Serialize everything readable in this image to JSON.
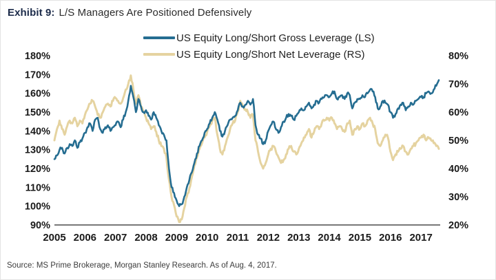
{
  "title": {
    "prefix": "Exhibit 9:",
    "text": "L/S Managers Are Positioned Defensively"
  },
  "source": "Source: MS Prime Brokerage, Morgan Stanley Research. As of Aug. 4, 2017.",
  "colors": {
    "gross_line": "#256d91",
    "net_line": "#e5d3a0",
    "axis_line": "#4a4a4a",
    "tick_text": "#1a1a1a",
    "title_prefix": "#1c2b4a"
  },
  "chart_data": {
    "type": "line",
    "title": "L/S Managers Are Positioned Defensively",
    "x_unit": "monthly from Jan 2005 to Aug 2017",
    "categories_x": [
      "2005",
      "2006",
      "2007",
      "2008",
      "2009",
      "2010",
      "2011",
      "2012",
      "2013",
      "2014",
      "2015",
      "2016",
      "2017"
    ],
    "left_axis": {
      "label": "Gross Leverage",
      "min": 90,
      "max": 180,
      "step": 10,
      "tick_labels": [
        "180%",
        "170%",
        "160%",
        "150%",
        "140%",
        "130%",
        "120%",
        "110%",
        "100%",
        "90%"
      ]
    },
    "right_axis": {
      "label": "Net Leverage",
      "min": 20,
      "max": 80,
      "step": 10,
      "tick_labels": [
        "80%",
        "70%",
        "60%",
        "50%",
        "40%",
        "30%",
        "20%"
      ]
    },
    "grid": false,
    "legend_position": "top-center",
    "series": [
      {
        "name": "US Equity Long/Short Gross Leverage (LS)",
        "axis": "left",
        "color": "#256d91",
        "values": [
          125,
          127,
          130,
          131,
          128,
          131,
          133,
          132,
          135,
          131,
          134,
          136,
          139,
          142,
          144,
          140,
          146,
          147,
          141,
          139,
          142,
          143,
          140,
          142,
          143,
          145,
          142,
          146,
          150,
          156,
          164,
          158,
          150,
          157,
          153,
          150,
          151,
          148,
          146,
          150,
          147,
          143,
          140,
          138,
          135,
          120,
          110,
          107,
          103,
          100,
          101,
          105,
          110,
          114,
          118,
          123,
          128,
          132,
          135,
          139,
          141,
          144,
          147,
          150,
          146,
          140,
          137,
          140,
          143,
          146,
          147,
          148,
          151,
          155,
          153,
          154,
          156,
          154,
          157,
          143,
          138,
          136,
          133,
          135,
          140,
          143,
          145,
          141,
          139,
          142,
          145,
          147,
          149,
          148,
          146,
          148,
          150,
          152,
          151,
          153,
          155,
          152,
          154,
          156,
          155,
          157,
          158,
          159,
          158,
          160,
          161,
          157,
          158,
          159,
          157,
          160,
          159,
          152,
          155,
          157,
          157,
          159,
          158,
          160,
          162,
          161,
          158,
          152,
          153,
          156,
          155,
          154,
          150,
          147,
          149,
          152,
          154,
          155,
          151,
          153,
          155,
          154,
          156,
          157,
          158,
          158,
          160,
          161,
          160,
          162,
          164,
          167
        ]
      },
      {
        "name": "US Equity Long/Short Net Leverage (RS)",
        "axis": "right",
        "color": "#e5d3a0",
        "values": [
          50,
          54,
          57,
          54,
          52,
          55,
          57,
          56,
          58,
          55,
          57,
          56,
          59,
          61,
          63,
          64,
          62,
          59,
          58,
          60,
          62,
          63,
          62,
          64,
          65,
          64,
          63,
          65,
          68,
          70,
          73,
          68,
          63,
          66,
          62,
          60,
          58,
          56,
          54,
          55,
          53,
          50,
          48,
          47,
          44,
          36,
          30,
          27,
          23,
          21,
          22,
          26,
          30,
          33,
          37,
          41,
          44,
          47,
          49,
          51,
          53,
          55,
          57,
          58,
          52,
          47,
          45,
          48,
          51,
          54,
          56,
          57,
          60,
          64,
          62,
          61,
          60,
          58,
          59,
          50,
          46,
          42,
          40,
          42,
          45,
          47,
          48,
          46,
          44,
          42,
          43,
          45,
          47,
          48,
          46,
          45,
          47,
          49,
          51,
          52,
          54,
          51,
          53,
          55,
          54,
          56,
          57,
          58,
          57,
          58,
          56,
          54,
          55,
          54,
          53,
          56,
          57,
          52,
          54,
          55,
          54,
          56,
          55,
          57,
          58,
          56,
          54,
          49,
          48,
          50,
          52,
          51,
          46,
          43,
          45,
          46,
          47,
          48,
          46,
          45,
          47,
          48,
          49,
          50,
          51,
          52,
          50,
          51,
          50,
          49,
          48,
          47
        ]
      }
    ]
  }
}
